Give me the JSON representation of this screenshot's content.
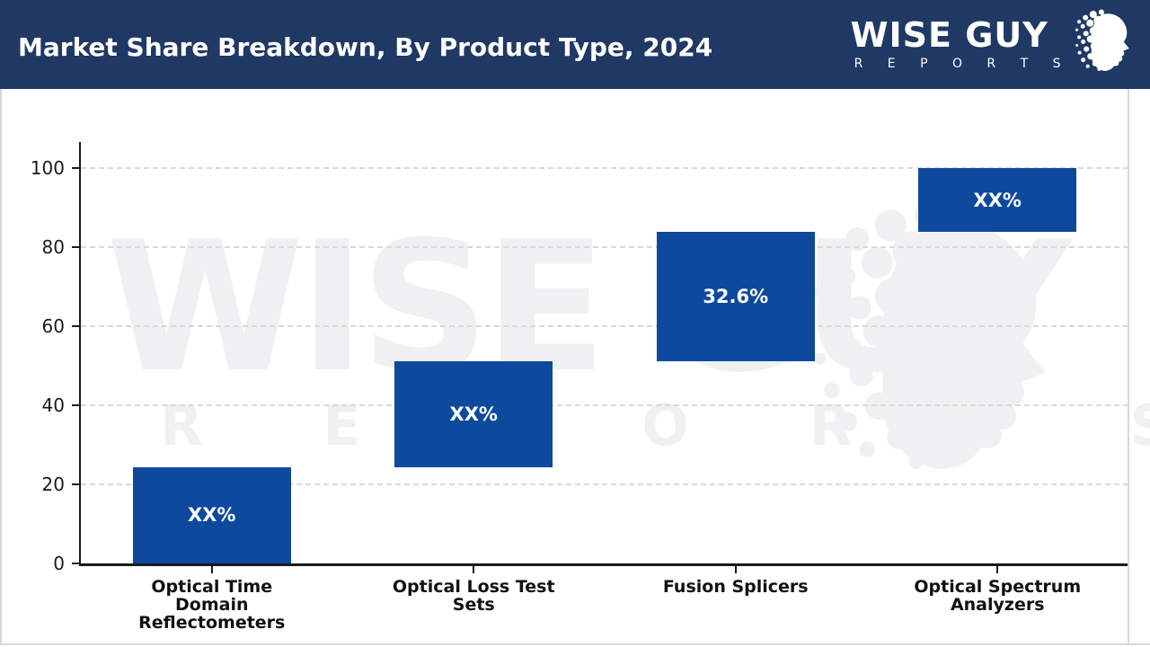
{
  "header": {
    "title": "Market Share Breakdown, By Product Type, 2024",
    "brand": {
      "line1": "WISE GUY",
      "line2": "R E P O R T S"
    },
    "bg_color": "#203864"
  },
  "watermark": {
    "line1": "WISE GUY",
    "line2": "R E P O R T S"
  },
  "chart_data": {
    "type": "bar",
    "subtype": "floating-waterfall",
    "title": "Market Share Breakdown, By Product Type, 2024",
    "categories": [
      [
        "Optical Time",
        "Domain",
        "Reflectometers"
      ],
      [
        "Optical Loss Test",
        "Sets"
      ],
      [
        "Fusion Splicers"
      ],
      [
        "Optical Spectrum",
        "Analyzers"
      ]
    ],
    "segments": [
      {
        "start": 0,
        "end": 24.4,
        "value": 24.4,
        "label": "XX%"
      },
      {
        "start": 24.4,
        "end": 51.2,
        "value": 26.8,
        "label": "XX%"
      },
      {
        "start": 51.2,
        "end": 83.8,
        "value": 32.6,
        "label": "32.6%"
      },
      {
        "start": 83.8,
        "end": 100,
        "value": 16.2,
        "label": "XX%"
      }
    ],
    "xlabel": "",
    "ylabel": "",
    "ylim": [
      0,
      100
    ],
    "yticks": [
      0,
      20,
      40,
      60,
      80,
      100
    ],
    "grid": "horizontal-dashed",
    "legend": "none",
    "bar_color": "#0d4a9e",
    "bar_label_color": "#ffffff",
    "axis_color": "#1a1a1a"
  }
}
